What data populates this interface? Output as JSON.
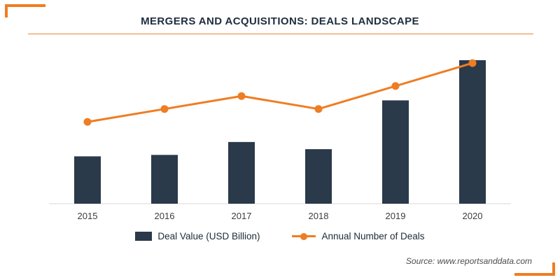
{
  "page": {
    "title": "MERGERS AND ACQUISITIONS: DEALS LANDSCAPE",
    "source": "Source: www.reportsanddata.com"
  },
  "legend": {
    "bar_label": "Deal Value (USD Billion)",
    "line_label": "Annual Number of Deals"
  },
  "colors": {
    "bar": "#2b3a4a",
    "line": "#ef7d22",
    "title": "#1f2d3d",
    "rule": "#e8852e",
    "axis": "#d8d8d8",
    "tick": "#3d3d3d"
  },
  "chart_data": {
    "type": "bar",
    "note_type": "combo bar + line",
    "categories": [
      "2015",
      "2016",
      "2017",
      "2018",
      "2019",
      "2020"
    ],
    "series": [
      {
        "name": "Deal Value (USD Billion)",
        "kind": "bar",
        "values": [
          33,
          34,
          43,
          38,
          72,
          100
        ]
      },
      {
        "name": "Annual Number of Deals",
        "kind": "line",
        "values": [
          57,
          66,
          75,
          66,
          82,
          98
        ]
      }
    ],
    "title": "MERGERS AND ACQUISITIONS: DEALS LANDSCAPE",
    "xlabel": "",
    "ylabel": "",
    "ylim": [
      0,
      105
    ],
    "grid": false,
    "y_axis_labels_shown": false,
    "legend_position": "bottom"
  }
}
